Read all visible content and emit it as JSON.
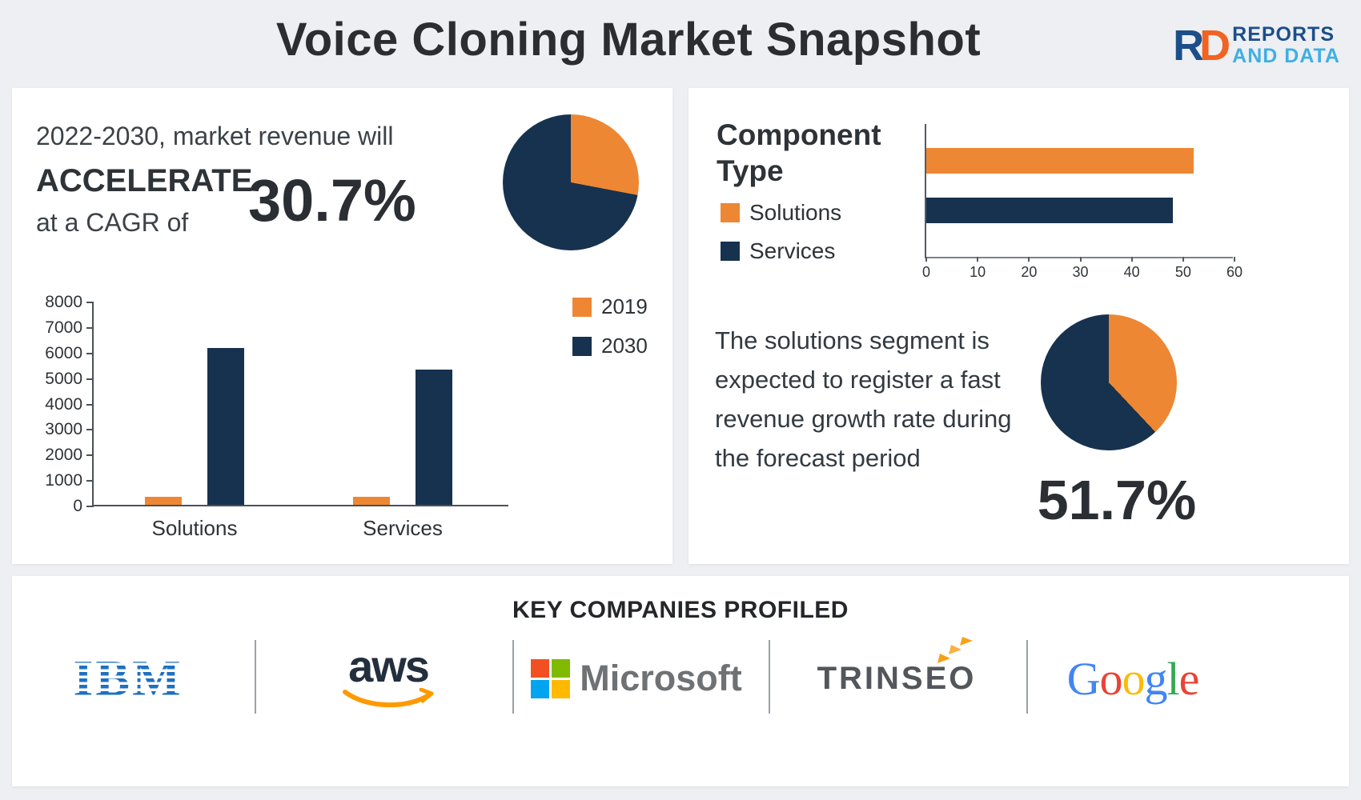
{
  "header": {
    "title": "Voice Cloning Market Snapshot",
    "logo": {
      "mark_r": "R",
      "mark_d": "D",
      "line1": "REPORTS",
      "line2": "AND DATA",
      "navy": "#1C4E8A",
      "light_blue": "#3FAFE4",
      "orange": "#F26322"
    }
  },
  "left_panel": {
    "intro_line": "2022-2030, market revenue will",
    "accelerate_word": "ACCELERATE",
    "cagr_line": "at a CAGR of",
    "cagr_value": "30.7%"
  },
  "component_section": {
    "heading_line1": "Component",
    "heading_line2": "Type",
    "legend": [
      {
        "label": "Solutions",
        "color": "#ED8733"
      },
      {
        "label": "Services",
        "color": "#16324E"
      }
    ]
  },
  "solutions_section": {
    "text": "The solutions segment is expected to register a fast revenue growth rate during the forecast period"
  },
  "companies": {
    "heading": "KEY COMPANIES PROFILED",
    "items": [
      {
        "name": "IBM"
      },
      {
        "name": "aws"
      },
      {
        "name": "Microsoft"
      },
      {
        "name": "TRINSEO"
      },
      {
        "name": "Google"
      }
    ],
    "microsoft_squares": [
      "#F25022",
      "#7FBA00",
      "#00A4EF",
      "#FFB900"
    ],
    "google_letters": [
      {
        "ch": "G",
        "color": "#4285F4"
      },
      {
        "ch": "o",
        "color": "#EA4335"
      },
      {
        "ch": "o",
        "color": "#FBBC05"
      },
      {
        "ch": "g",
        "color": "#4285F4"
      },
      {
        "ch": "l",
        "color": "#34A853"
      },
      {
        "ch": "e",
        "color": "#EA4335"
      }
    ]
  },
  "colors": {
    "navy": "#16324E",
    "orange": "#ED8733",
    "background": "#EDEFF2"
  },
  "chart_data": [
    {
      "name": "market-growth-pie",
      "type": "pie",
      "values": [
        28,
        72
      ],
      "colors": [
        "#ED8733",
        "#16324E"
      ]
    },
    {
      "name": "revenue-by-component-bar",
      "type": "bar",
      "categories": [
        "Solutions",
        "Services"
      ],
      "series": [
        {
          "name": "2019",
          "color": "#ED8733",
          "values": [
            300,
            300
          ]
        },
        {
          "name": "2030",
          "color": "#16324E",
          "values": [
            6150,
            5300
          ]
        }
      ],
      "ylim": [
        0,
        8000
      ],
      "ytick_step": 1000,
      "legend_position": "right",
      "grid": false
    },
    {
      "name": "component-type-bar",
      "type": "bar",
      "orientation": "horizontal",
      "categories": [
        "Solutions",
        "Services"
      ],
      "series": [
        {
          "name": "share",
          "values": [
            52,
            48
          ]
        }
      ],
      "colors": [
        "#ED8733",
        "#16324E"
      ],
      "xlim": [
        0,
        60
      ],
      "xtick_step": 10,
      "grid": false
    },
    {
      "name": "solutions-share-pie",
      "type": "pie",
      "values": [
        38,
        62
      ],
      "colors": [
        "#ED8733",
        "#16324E"
      ],
      "annotation": "51.7%"
    }
  ]
}
